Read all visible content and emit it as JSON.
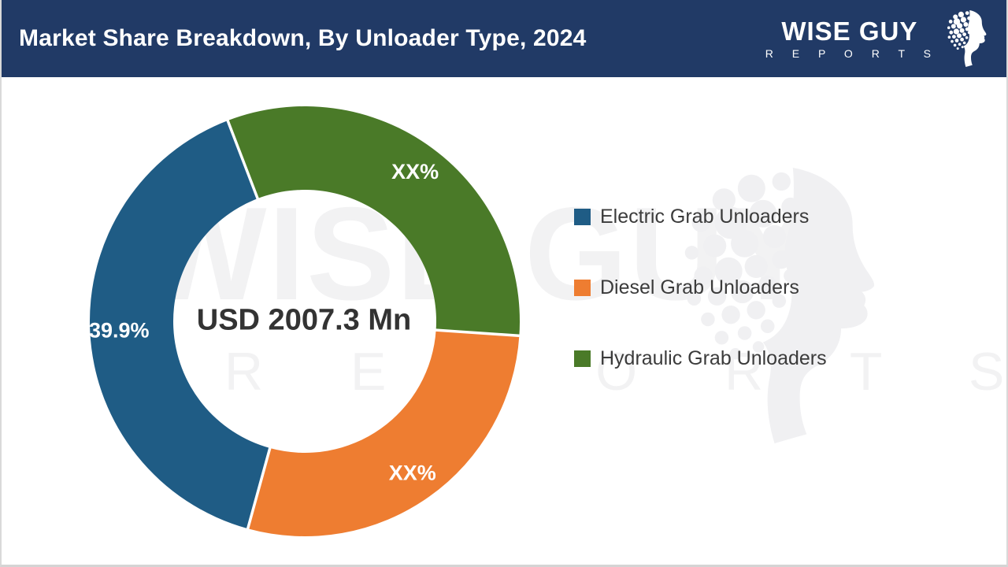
{
  "header": {
    "title": "Market Share Breakdown, By Unloader Type, 2024",
    "background_color": "#213a66",
    "logo": {
      "line1": "WISE GUY",
      "line2": "R E P O R T S"
    }
  },
  "watermark": {
    "line1": "WISE GUY",
    "line2": "R E P O R T S"
  },
  "chart_data": {
    "type": "donut",
    "title": "Market Share Breakdown, By Unloader Type, 2024",
    "center_label": "USD 2007.3 Mn",
    "start_angle_deg": -21,
    "slices": [
      {
        "label": "Hydraulic Grab Unloaders",
        "display_value": "XX%",
        "value_pct": 31.9,
        "color": "#4a7a28"
      },
      {
        "label": "Diesel Grab Unloaders",
        "display_value": "XX%",
        "value_pct": 28.2,
        "color": "#ee7d31"
      },
      {
        "label": "Electric Grab Unloaders",
        "display_value": "39.9%",
        "value_pct": 39.9,
        "color": "#1f5c85"
      }
    ],
    "legend": {
      "position": "right",
      "items": [
        {
          "label": "Electric Grab Unloaders",
          "color": "#1f5c85"
        },
        {
          "label": "Diesel Grab Unloaders",
          "color": "#ee7d31"
        },
        {
          "label": "Hydraulic Grab Unloaders",
          "color": "#4a7a28"
        }
      ]
    }
  }
}
